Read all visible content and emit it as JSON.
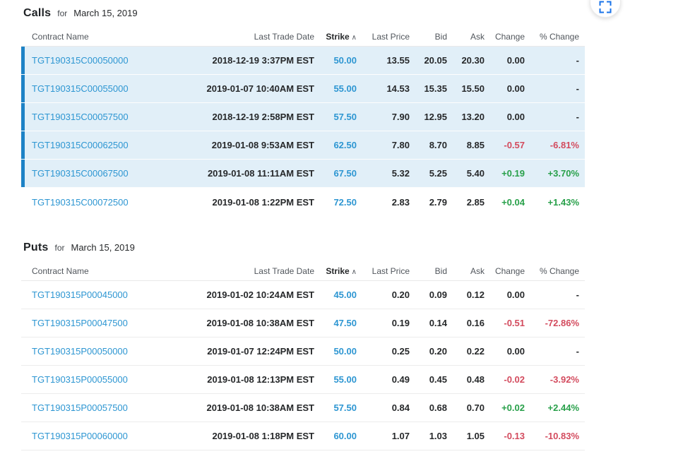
{
  "colors": {
    "link_blue": "#2d96d2",
    "bar_blue": "#1d82c6",
    "row_highlight": "#e1eff8",
    "up_green": "#28a04a",
    "down_red": "#d34b5e",
    "text_dark": "#26282a",
    "header_gray": "#51565c",
    "icon_blue": "#1a73e8"
  },
  "expand_button": {
    "icon": "expand-icon"
  },
  "sort_caret": "∧",
  "calls": {
    "title": "Calls",
    "for_label": "for",
    "date": "March 15, 2019",
    "columns": [
      "Contract Name",
      "Last Trade Date",
      "Strike",
      "Last Price",
      "Bid",
      "Ask",
      "Change",
      "% Change"
    ],
    "sorted_column": "Strike",
    "rows": [
      {
        "contract": "TGT190315C00050000",
        "last_trade": "2018-12-19 3:37PM EST",
        "strike": "50.00",
        "last_price": "13.55",
        "bid": "20.05",
        "ask": "20.30",
        "change": "0.00",
        "pct_change": "-",
        "dir": "flat",
        "in_the_money": true
      },
      {
        "contract": "TGT190315C00055000",
        "last_trade": "2019-01-07 10:40AM EST",
        "strike": "55.00",
        "last_price": "14.53",
        "bid": "15.35",
        "ask": "15.50",
        "change": "0.00",
        "pct_change": "-",
        "dir": "flat",
        "in_the_money": true
      },
      {
        "contract": "TGT190315C00057500",
        "last_trade": "2018-12-19 2:58PM EST",
        "strike": "57.50",
        "last_price": "7.90",
        "bid": "12.95",
        "ask": "13.20",
        "change": "0.00",
        "pct_change": "-",
        "dir": "flat",
        "in_the_money": true
      },
      {
        "contract": "TGT190315C00062500",
        "last_trade": "2019-01-08 9:53AM EST",
        "strike": "62.50",
        "last_price": "7.80",
        "bid": "8.70",
        "ask": "8.85",
        "change": "-0.57",
        "pct_change": "-6.81%",
        "dir": "down",
        "in_the_money": true
      },
      {
        "contract": "TGT190315C00067500",
        "last_trade": "2019-01-08 11:11AM EST",
        "strike": "67.50",
        "last_price": "5.32",
        "bid": "5.25",
        "ask": "5.40",
        "change": "+0.19",
        "pct_change": "+3.70%",
        "dir": "up",
        "in_the_money": true
      },
      {
        "contract": "TGT190315C00072500",
        "last_trade": "2019-01-08 1:22PM EST",
        "strike": "72.50",
        "last_price": "2.83",
        "bid": "2.79",
        "ask": "2.85",
        "change": "+0.04",
        "pct_change": "+1.43%",
        "dir": "up",
        "in_the_money": false
      }
    ]
  },
  "puts": {
    "title": "Puts",
    "for_label": "for",
    "date": "March 15, 2019",
    "columns": [
      "Contract Name",
      "Last Trade Date",
      "Strike",
      "Last Price",
      "Bid",
      "Ask",
      "Change",
      "% Change"
    ],
    "sorted_column": "Strike",
    "rows": [
      {
        "contract": "TGT190315P00045000",
        "last_trade": "2019-01-02 10:24AM EST",
        "strike": "45.00",
        "last_price": "0.20",
        "bid": "0.09",
        "ask": "0.12",
        "change": "0.00",
        "pct_change": "-",
        "dir": "flat",
        "in_the_money": false
      },
      {
        "contract": "TGT190315P00047500",
        "last_trade": "2019-01-08 10:38AM EST",
        "strike": "47.50",
        "last_price": "0.19",
        "bid": "0.14",
        "ask": "0.16",
        "change": "-0.51",
        "pct_change": "-72.86%",
        "dir": "down",
        "in_the_money": false
      },
      {
        "contract": "TGT190315P00050000",
        "last_trade": "2019-01-07 12:24PM EST",
        "strike": "50.00",
        "last_price": "0.25",
        "bid": "0.20",
        "ask": "0.22",
        "change": "0.00",
        "pct_change": "-",
        "dir": "flat",
        "in_the_money": false
      },
      {
        "contract": "TGT190315P00055000",
        "last_trade": "2019-01-08 12:13PM EST",
        "strike": "55.00",
        "last_price": "0.49",
        "bid": "0.45",
        "ask": "0.48",
        "change": "-0.02",
        "pct_change": "-3.92%",
        "dir": "down",
        "in_the_money": false
      },
      {
        "contract": "TGT190315P00057500",
        "last_trade": "2019-01-08 10:38AM EST",
        "strike": "57.50",
        "last_price": "0.84",
        "bid": "0.68",
        "ask": "0.70",
        "change": "+0.02",
        "pct_change": "+2.44%",
        "dir": "up",
        "in_the_money": false
      },
      {
        "contract": "TGT190315P00060000",
        "last_trade": "2019-01-08 1:18PM EST",
        "strike": "60.00",
        "last_price": "1.07",
        "bid": "1.03",
        "ask": "1.05",
        "change": "-0.13",
        "pct_change": "-10.83%",
        "dir": "down",
        "in_the_money": false
      }
    ]
  }
}
